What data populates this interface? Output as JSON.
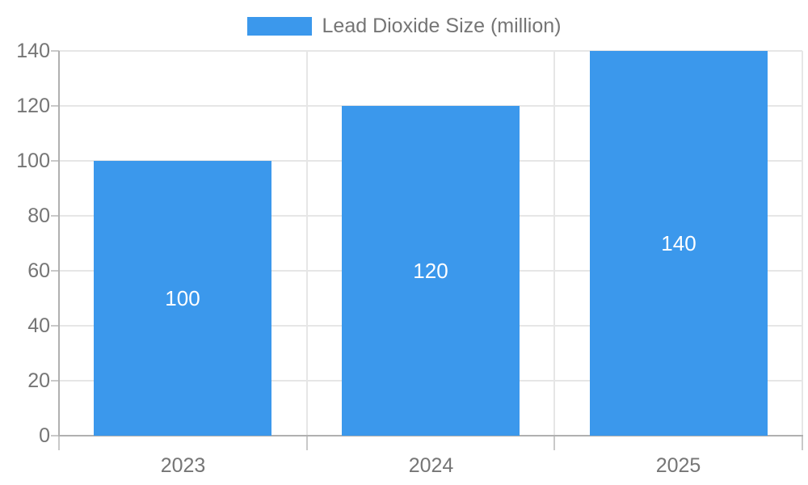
{
  "chart_data": {
    "type": "bar",
    "legend": "Lead Dioxide Size (million)",
    "legend_position": "top",
    "categories": [
      "2023",
      "2024",
      "2025"
    ],
    "series": [
      {
        "name": "Lead Dioxide Size (million)",
        "values": [
          100,
          120,
          140
        ]
      }
    ],
    "data_labels": [
      "100",
      "120",
      "140"
    ],
    "xlabel": "",
    "ylabel": "",
    "ylim": [
      0,
      140
    ],
    "yticks": [
      0,
      20,
      40,
      60,
      80,
      100,
      120,
      140
    ],
    "grid": true,
    "colors": {
      "bar": "#3b98ec",
      "data_label_text": "#ffffff",
      "axis_line": "#b0b0b0",
      "grid_line": "#e6e6e6",
      "tick_mark": "#c9c9c9",
      "tick_text": "#757575"
    }
  }
}
